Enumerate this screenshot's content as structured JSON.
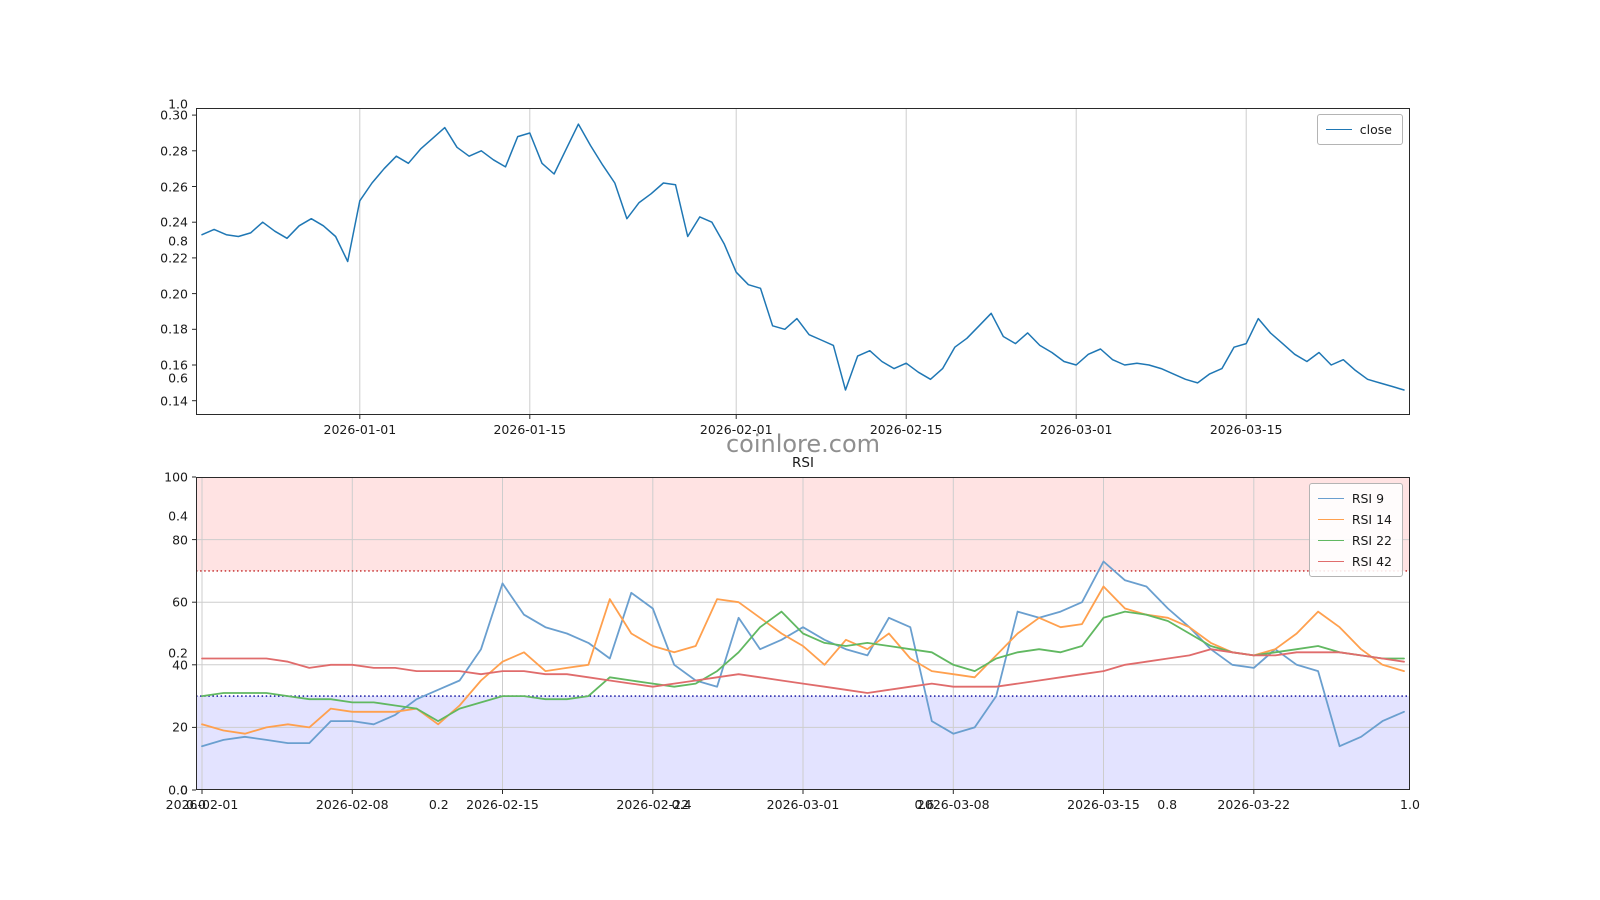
{
  "watermark": "coinlore.com",
  "chart_data": [
    {
      "type": "line",
      "title": "",
      "ylim": [
        0.132,
        0.304
      ],
      "x_start_date": "2025-12-19",
      "x_step_days": 1,
      "grid": "vertical",
      "legend_position": "upper right",
      "y_ticks": [
        {
          "label": "0.30",
          "value": 0.3
        },
        {
          "label": "0.28",
          "value": 0.28
        },
        {
          "label": "0.26",
          "value": 0.26
        },
        {
          "label": "0.24",
          "value": 0.24
        },
        {
          "label": "0.22",
          "value": 0.22
        },
        {
          "label": "0.20",
          "value": 0.2
        },
        {
          "label": "0.18",
          "value": 0.18
        },
        {
          "label": "0.16",
          "value": 0.16
        },
        {
          "label": "0.14",
          "value": 0.14
        }
      ],
      "x_ticks": [
        {
          "label": "2026-01-01",
          "index": 13
        },
        {
          "label": "2026-01-15",
          "index": 27
        },
        {
          "label": "2026-02-01",
          "index": 44
        },
        {
          "label": "2026-02-15",
          "index": 58
        },
        {
          "label": "2026-03-01",
          "index": 72
        },
        {
          "label": "2026-03-15",
          "index": 86
        }
      ],
      "series": [
        {
          "name": "close",
          "color": "#1f77b4",
          "width": 1.5,
          "values": [
            0.233,
            0.236,
            0.233,
            0.232,
            0.234,
            0.24,
            0.235,
            0.231,
            0.238,
            0.242,
            0.238,
            0.232,
            0.218,
            0.252,
            0.262,
            0.27,
            0.277,
            0.273,
            0.281,
            0.287,
            0.293,
            0.282,
            0.277,
            0.28,
            0.275,
            0.271,
            0.288,
            0.29,
            0.273,
            0.267,
            0.281,
            0.295,
            0.283,
            0.272,
            0.262,
            0.242,
            0.251,
            0.256,
            0.262,
            0.261,
            0.232,
            0.243,
            0.24,
            0.228,
            0.212,
            0.205,
            0.203,
            0.182,
            0.18,
            0.186,
            0.177,
            0.174,
            0.171,
            0.146,
            0.165,
            0.168,
            0.162,
            0.158,
            0.161,
            0.156,
            0.152,
            0.158,
            0.17,
            0.175,
            0.182,
            0.189,
            0.176,
            0.172,
            0.178,
            0.171,
            0.167,
            0.162,
            0.16,
            0.166,
            0.169,
            0.163,
            0.16,
            0.161,
            0.16,
            0.158,
            0.155,
            0.152,
            0.15,
            0.155,
            0.158,
            0.17,
            0.172,
            0.186,
            0.178,
            0.172,
            0.166,
            0.162,
            0.167,
            0.16,
            0.163,
            0.157,
            0.152,
            0.15,
            0.148,
            0.146
          ]
        }
      ]
    },
    {
      "type": "line",
      "title": "RSI",
      "ylim": [
        0,
        100
      ],
      "x_start_date": "2026-02-01",
      "x_step_days": 1,
      "grid": "both",
      "legend_position": "upper right",
      "overbought_level": 70,
      "oversold_level": 30,
      "bands": [
        {
          "from": 70,
          "to": 100,
          "color": "rgba(255,0,0,0.11)"
        },
        {
          "from": 0,
          "to": 30,
          "color": "rgba(0,0,255,0.11)"
        }
      ],
      "hlines": [
        {
          "y": 70,
          "color": "#c02020",
          "style": "dotted"
        },
        {
          "y": 30,
          "color": "#000099",
          "style": "dotted"
        }
      ],
      "y_ticks": [
        {
          "label": "100",
          "value": 100
        },
        {
          "label": "80",
          "value": 80
        },
        {
          "label": "60",
          "value": 60
        },
        {
          "label": "40",
          "value": 40
        },
        {
          "label": "20",
          "value": 20
        },
        {
          "label": "0",
          "value": 0
        }
      ],
      "x_ticks": [
        {
          "label": "2026-02-01",
          "index": 0
        },
        {
          "label": "2026-02-08",
          "index": 7
        },
        {
          "label": "2026-02-15",
          "index": 14
        },
        {
          "label": "2026-02-22",
          "index": 21
        },
        {
          "label": "2026-03-01",
          "index": 28
        },
        {
          "label": "2026-03-08",
          "index": 35
        },
        {
          "label": "2026-03-15",
          "index": 42
        },
        {
          "label": "2026-03-22",
          "index": 49
        }
      ],
      "series": [
        {
          "name": "RSI 9",
          "color": "#6a9fcf",
          "width": 1.8,
          "values": [
            14,
            16,
            17,
            16,
            15,
            15,
            22,
            22,
            21,
            24,
            29,
            32,
            35,
            45,
            66,
            56,
            52,
            50,
            47,
            42,
            63,
            58,
            40,
            35,
            33,
            55,
            45,
            48,
            52,
            48,
            45,
            43,
            55,
            52,
            22,
            18,
            20,
            30,
            57,
            55,
            57,
            60,
            73,
            67,
            65,
            58,
            52,
            45,
            40,
            39,
            45,
            40,
            38,
            14,
            17,
            22,
            25
          ]
        },
        {
          "name": "RSI 14",
          "color": "#ffa04e",
          "width": 1.8,
          "values": [
            21,
            19,
            18,
            20,
            21,
            20,
            26,
            25,
            25,
            25,
            26,
            21,
            27,
            35,
            41,
            44,
            38,
            39,
            40,
            61,
            50,
            46,
            44,
            46,
            61,
            60,
            55,
            50,
            46,
            40,
            48,
            45,
            50,
            42,
            38,
            37,
            36,
            43,
            50,
            55,
            52,
            53,
            65,
            58,
            56,
            55,
            52,
            47,
            44,
            43,
            45,
            50,
            57,
            52,
            45,
            40,
            38
          ]
        },
        {
          "name": "RSI 22",
          "color": "#61b861",
          "width": 1.8,
          "values": [
            30,
            31,
            31,
            31,
            30,
            29,
            29,
            28,
            28,
            27,
            26,
            22,
            26,
            28,
            30,
            30,
            29,
            29,
            30,
            36,
            35,
            34,
            33,
            34,
            38,
            44,
            52,
            57,
            50,
            47,
            46,
            47,
            46,
            45,
            44,
            40,
            38,
            42,
            44,
            45,
            44,
            46,
            55,
            57,
            56,
            54,
            50,
            46,
            44,
            43,
            44,
            45,
            46,
            44,
            43,
            42,
            42
          ]
        },
        {
          "name": "RSI 42",
          "color": "#e06c6c",
          "width": 1.8,
          "values": [
            42,
            42,
            42,
            42,
            41,
            39,
            40,
            40,
            39,
            39,
            38,
            38,
            38,
            37,
            38,
            38,
            37,
            37,
            36,
            35,
            34,
            33,
            34,
            35,
            36,
            37,
            36,
            35,
            34,
            33,
            32,
            31,
            32,
            33,
            34,
            33,
            33,
            33,
            34,
            35,
            36,
            37,
            38,
            40,
            41,
            42,
            43,
            45,
            44,
            43,
            43,
            44,
            44,
            44,
            43,
            42,
            41
          ]
        }
      ]
    }
  ],
  "stray_axes": {
    "x_tick_labels": [
      "0.0",
      "0.2",
      "0.4",
      "0.6",
      "0.8",
      "1.0"
    ],
    "y_tick_labels": [
      "0.0",
      "0.2",
      "0.4",
      "0.6",
      "0.8",
      "1.0"
    ]
  }
}
